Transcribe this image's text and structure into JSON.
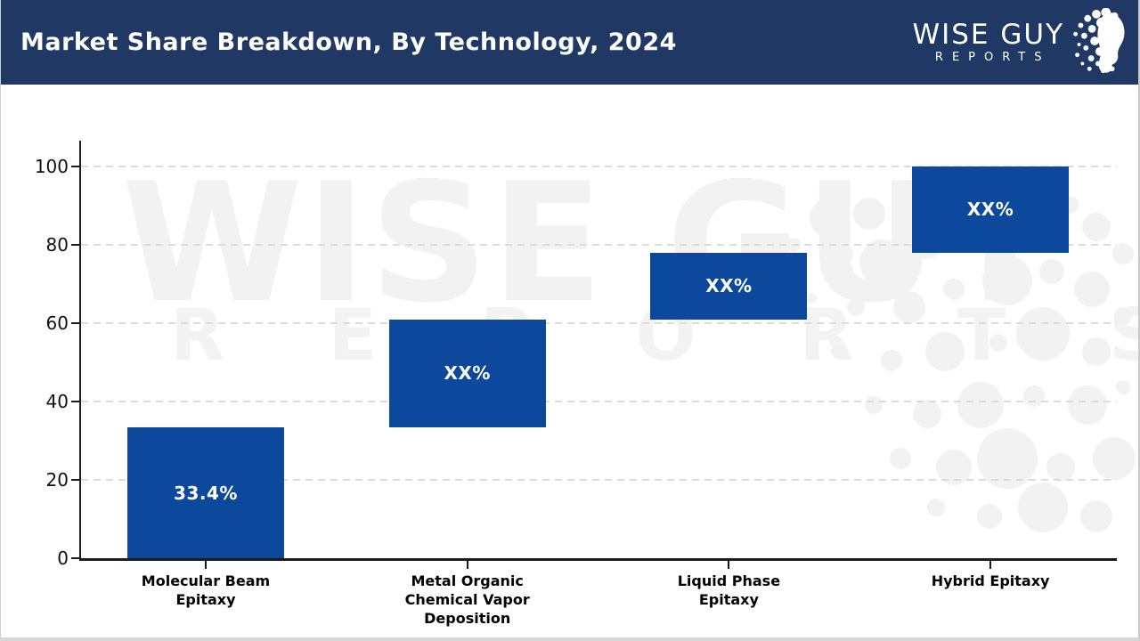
{
  "header": {
    "title": "Market Share Breakdown, By Technology, 2024",
    "bg_color": "#1F3864",
    "text_color": "#FFFFFF",
    "logo": {
      "line1": "WISE GUY",
      "line2": "REPORTS"
    }
  },
  "watermark": {
    "line1": "WISE GUY",
    "line2": "R E P O R T S",
    "color": "#F2F2F2"
  },
  "chart_data": {
    "type": "bar",
    "variant": "floating-waterfall",
    "title": "Market Share Breakdown, By Technology, 2024",
    "xlabel": "",
    "ylabel": "",
    "ylim": [
      0,
      106
    ],
    "y_ticks": [
      0,
      20,
      40,
      60,
      80,
      100
    ],
    "grid": {
      "horizontal": true,
      "style": "dashed",
      "color": "#DCDCDC"
    },
    "legend": "none",
    "bar_color": "#0C489C",
    "bar_label_color": "#FFFFFF",
    "categories": [
      "Molecular Beam Epitaxy",
      "Metal Organic Chemical Vapor Deposition",
      "Liquid Phase Epitaxy",
      "Hybrid Epitaxy"
    ],
    "bars": [
      {
        "category": "Molecular Beam Epitaxy",
        "category_lines": [
          "Molecular Beam",
          "Epitaxy"
        ],
        "start": 0,
        "end": 33.4,
        "label": "33.4%"
      },
      {
        "category": "Metal Organic Chemical Vapor Deposition",
        "category_lines": [
          "Metal Organic",
          "Chemical Vapor",
          "Deposition"
        ],
        "start": 33.4,
        "end": 61,
        "label": "XX%"
      },
      {
        "category": "Liquid Phase Epitaxy",
        "category_lines": [
          "Liquid Phase",
          "Epitaxy"
        ],
        "start": 61,
        "end": 78,
        "label": "XX%"
      },
      {
        "category": "Hybrid Epitaxy",
        "category_lines": [
          "Hybrid Epitaxy"
        ],
        "start": 78,
        "end": 100,
        "label": "XX%"
      }
    ]
  }
}
